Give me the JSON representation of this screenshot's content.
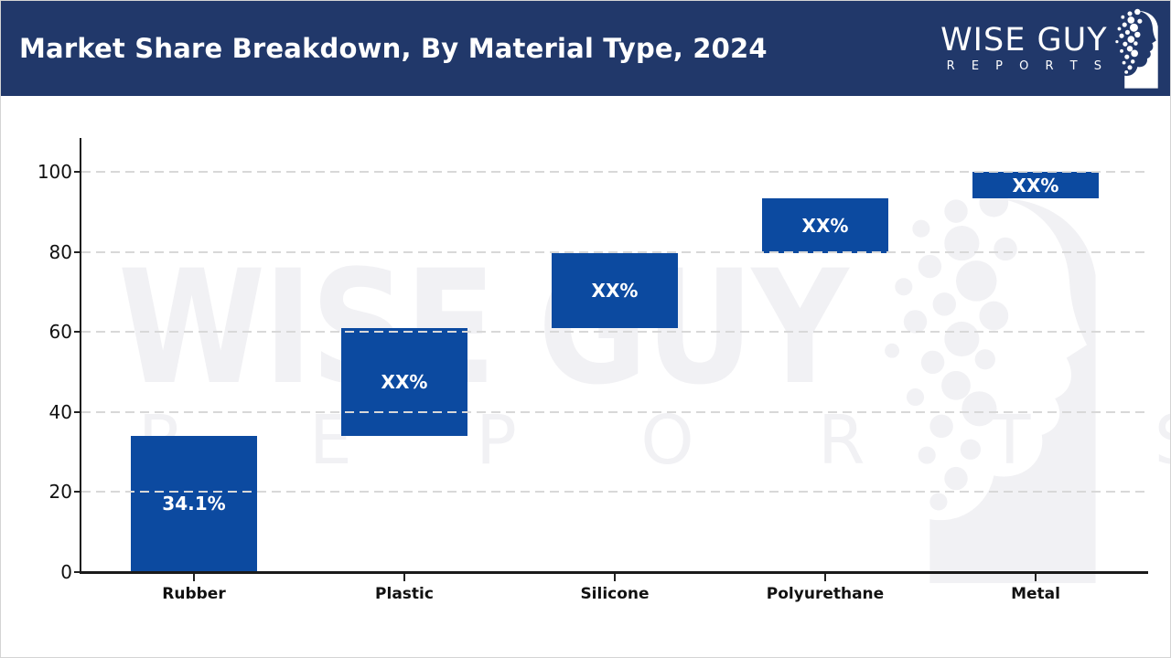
{
  "header": {
    "title": "Market Share Breakdown, By Material Type, 2024",
    "logo": {
      "wordmark": "WISE GUY",
      "subtext": "R E P O R T S"
    }
  },
  "watermark": {
    "wordmark": "WISE GUY",
    "subtext": "R E P O R T S"
  },
  "colors": {
    "header_bg": "#21386a",
    "bar_fill": "#0c4aa0",
    "grid_line": "#d8d8d8",
    "axis_line": "#1a1a1a",
    "watermark_text": "#f1f1f4",
    "bar_label_text": "#ffffff",
    "tick_text": "#111111"
  },
  "chart_data": {
    "type": "bar",
    "subtype": "waterfall",
    "title": "Market Share Breakdown, By Material Type, 2024",
    "categories": [
      "Rubber",
      "Plastic",
      "Silicone",
      "Polyurethane",
      "Metal"
    ],
    "segments": [
      {
        "category": "Rubber",
        "start": 0,
        "end": 34.1,
        "label": "34.1%"
      },
      {
        "category": "Plastic",
        "start": 34.1,
        "end": 61.0,
        "label": "XX%"
      },
      {
        "category": "Silicone",
        "start": 61.0,
        "end": 79.6,
        "label": "XX%"
      },
      {
        "category": "Polyurethane",
        "start": 79.6,
        "end": 93.3,
        "label": "XX%"
      },
      {
        "category": "Metal",
        "start": 93.3,
        "end": 100,
        "label": "XX%"
      }
    ],
    "y_ticks": [
      0,
      20,
      40,
      60,
      80,
      100
    ],
    "ylim": [
      0,
      108
    ],
    "xlabel": "",
    "ylabel": "",
    "grid": "horizontal-dashed",
    "legend": "none"
  }
}
